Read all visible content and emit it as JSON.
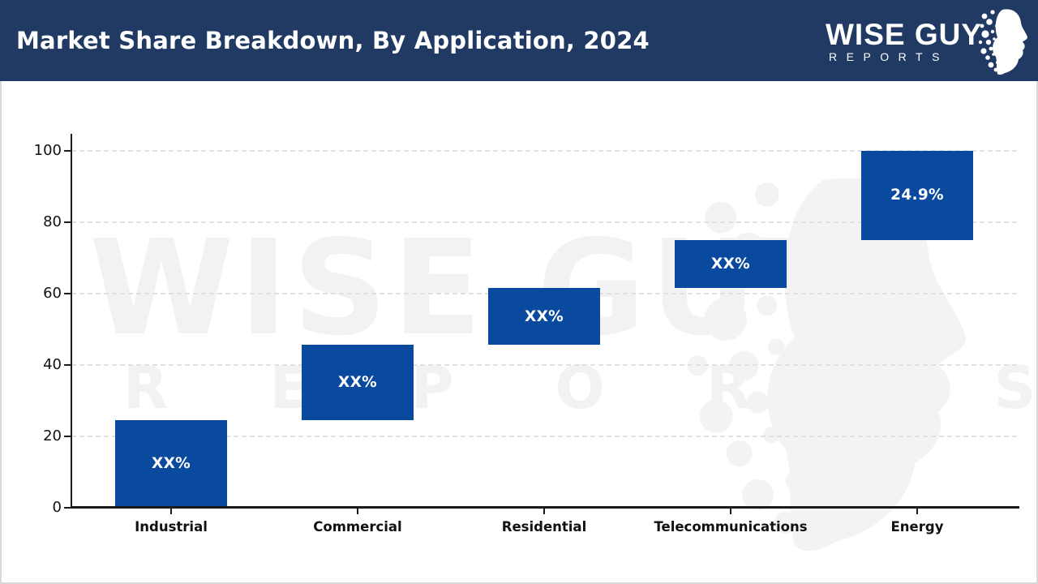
{
  "header": {
    "title": "Market Share Breakdown, By Application, 2024",
    "logo": {
      "wordmark": "WISE GUY",
      "subtext": "REPORTS"
    }
  },
  "watermark": {
    "wordmark": "WISE GUY",
    "subtext": "R E P O R T S"
  },
  "chart_data": {
    "type": "bar",
    "variant": "waterfall",
    "title": "Market Share Breakdown, By Application, 2024",
    "categories": [
      "Industrial",
      "Commercial",
      "Residential",
      "Telecommunications",
      "Energy"
    ],
    "segments": [
      {
        "category": "Industrial",
        "start": 0,
        "end": 24.6,
        "label": "XX%"
      },
      {
        "category": "Commercial",
        "start": 24.6,
        "end": 45.6,
        "label": "XX%"
      },
      {
        "category": "Residential",
        "start": 45.6,
        "end": 61.5,
        "label": "XX%"
      },
      {
        "category": "Telecommunications",
        "start": 61.5,
        "end": 75.1,
        "label": "XX%"
      },
      {
        "category": "Energy",
        "start": 75.1,
        "end": 100,
        "label": "24.9%"
      }
    ],
    "ylim": [
      0,
      100
    ],
    "yticks": [
      0,
      20,
      40,
      60,
      80,
      100
    ],
    "xlabel": "",
    "ylabel": "",
    "legend": "none",
    "grid": {
      "horizontal": true,
      "style": "dashed"
    },
    "colors": {
      "bar": "#0a4a9e",
      "bar_label": "#ffffff",
      "grid": "#e1e1e1",
      "axis": "#1a1a1a",
      "header_bg": "#213a64",
      "watermark": "#f2f2f2"
    }
  }
}
